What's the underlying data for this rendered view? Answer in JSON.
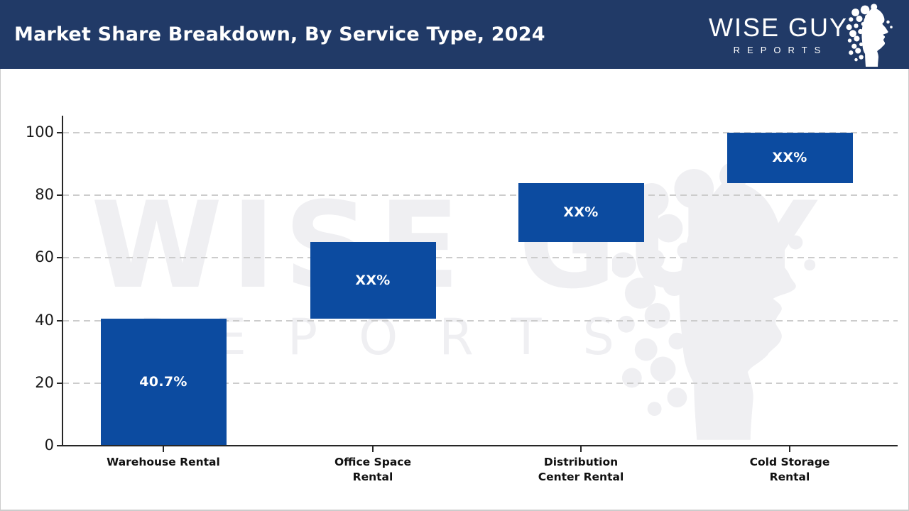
{
  "header": {
    "title": "Market Share Breakdown, By Service Type, 2024",
    "logo": {
      "line1": "WISE GUY",
      "line2": "REPORTS"
    }
  },
  "watermark": {
    "line1": "WISE GUY",
    "line2": "REPORTS"
  },
  "chart_data": {
    "type": "bar",
    "subtype": "waterfall",
    "title": "Market Share Breakdown, By Service Type, 2024",
    "xlabel": "",
    "ylabel": "",
    "categories": [
      "Warehouse Rental",
      "Office Space\nRental",
      "Distribution\nCenter Rental",
      "Cold Storage\nRental"
    ],
    "series": [
      {
        "name": "Market share (%)",
        "segments": [
          {
            "category": "Warehouse Rental",
            "start": 0,
            "end": 40.7,
            "label": "40.7%"
          },
          {
            "category": "Office Space Rental",
            "start": 40.7,
            "end": 65,
            "label": "XX%"
          },
          {
            "category": "Distribution Center Rental",
            "start": 65,
            "end": 84,
            "label": "XX%"
          },
          {
            "category": "Cold Storage Rental",
            "start": 84,
            "end": 100,
            "label": "XX%"
          }
        ]
      }
    ],
    "ylim": [
      0,
      100
    ],
    "yticks": [
      0,
      20,
      40,
      60,
      80,
      100
    ],
    "grid": "horizontal-dashed",
    "legend": "none",
    "bar_color": "#0C4BA0"
  }
}
